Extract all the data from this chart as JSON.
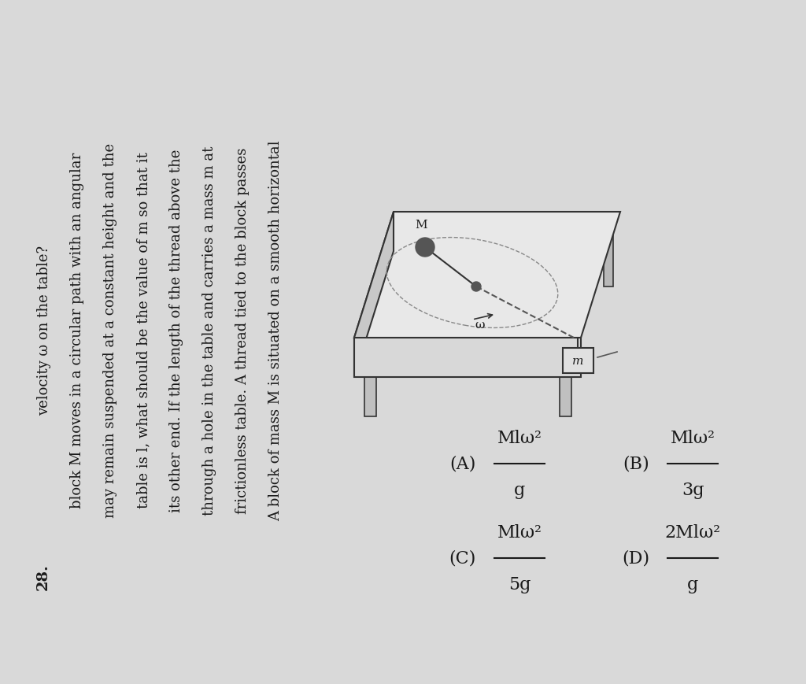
{
  "background_color": "#d9d9d9",
  "question_number": "28.",
  "question_text": "A block of mass M is situated on a smooth horizontal\nfrictionless table. A thread tied to the block passes\nthrough a hole in the table and carries a mass m at\nits other end. If the length of the thread above the\ntable is l, what should be the value of m so that it\nmay remain suspended at a constant height and the\nblock M moves in a circular path with an angular\nvelocity ω on the table?",
  "answers": {
    "A": {
      "num": "Mlω²",
      "den": "g"
    },
    "B": {
      "num": "Mlω²",
      "den": "3g"
    },
    "C": {
      "num": "Mlω²",
      "den": "5g"
    },
    "D": {
      "num": "2Mlω²",
      "den": "g"
    }
  },
  "text_color": "#1a1a1a",
  "font_size_question": 13.5,
  "font_size_answers": 15
}
